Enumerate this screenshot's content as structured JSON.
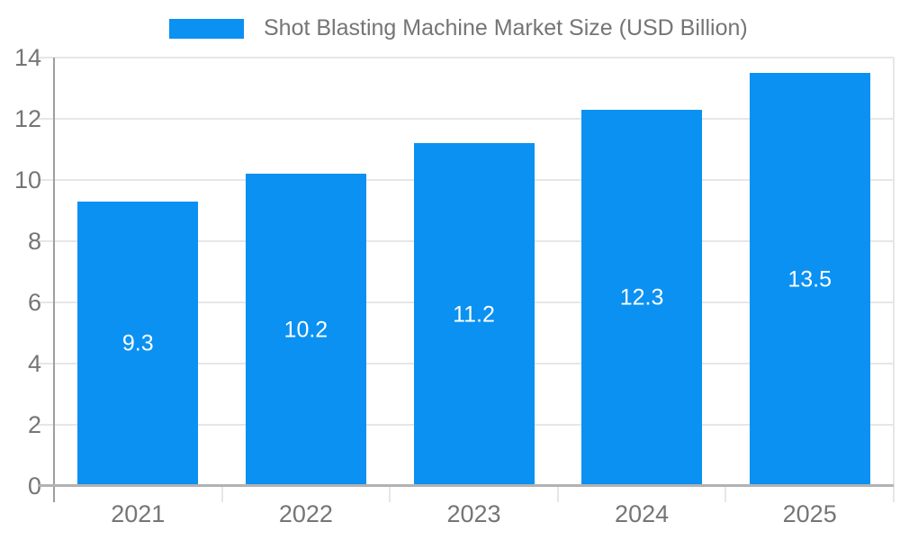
{
  "chart_data": {
    "type": "bar",
    "title": "Shot Blasting Machine Market Size (USD Billion)",
    "categories": [
      "2021",
      "2022",
      "2023",
      "2024",
      "2025"
    ],
    "values": [
      9.3,
      10.2,
      11.2,
      12.3,
      13.5
    ],
    "bar_labels": [
      "9.3",
      "10.2",
      "11.2",
      "12.3",
      "13.5"
    ],
    "yticks": [
      0,
      2,
      4,
      6,
      8,
      10,
      12,
      14
    ],
    "ytick_labels": [
      "0",
      "2",
      "4",
      "6",
      "8",
      "10",
      "12",
      "14"
    ],
    "ylim": [
      0,
      14
    ],
    "grid": true,
    "legend_position": "top",
    "xlabel": "",
    "ylabel": "",
    "colors": {
      "bar": "#0a91f2",
      "bar_label": "#ffffff",
      "axis_text": "#757575",
      "gridline": "#e6e6e6",
      "axis_line": "#9e9e9e",
      "baseline": "#b2b2b2",
      "background": "#ffffff"
    }
  }
}
